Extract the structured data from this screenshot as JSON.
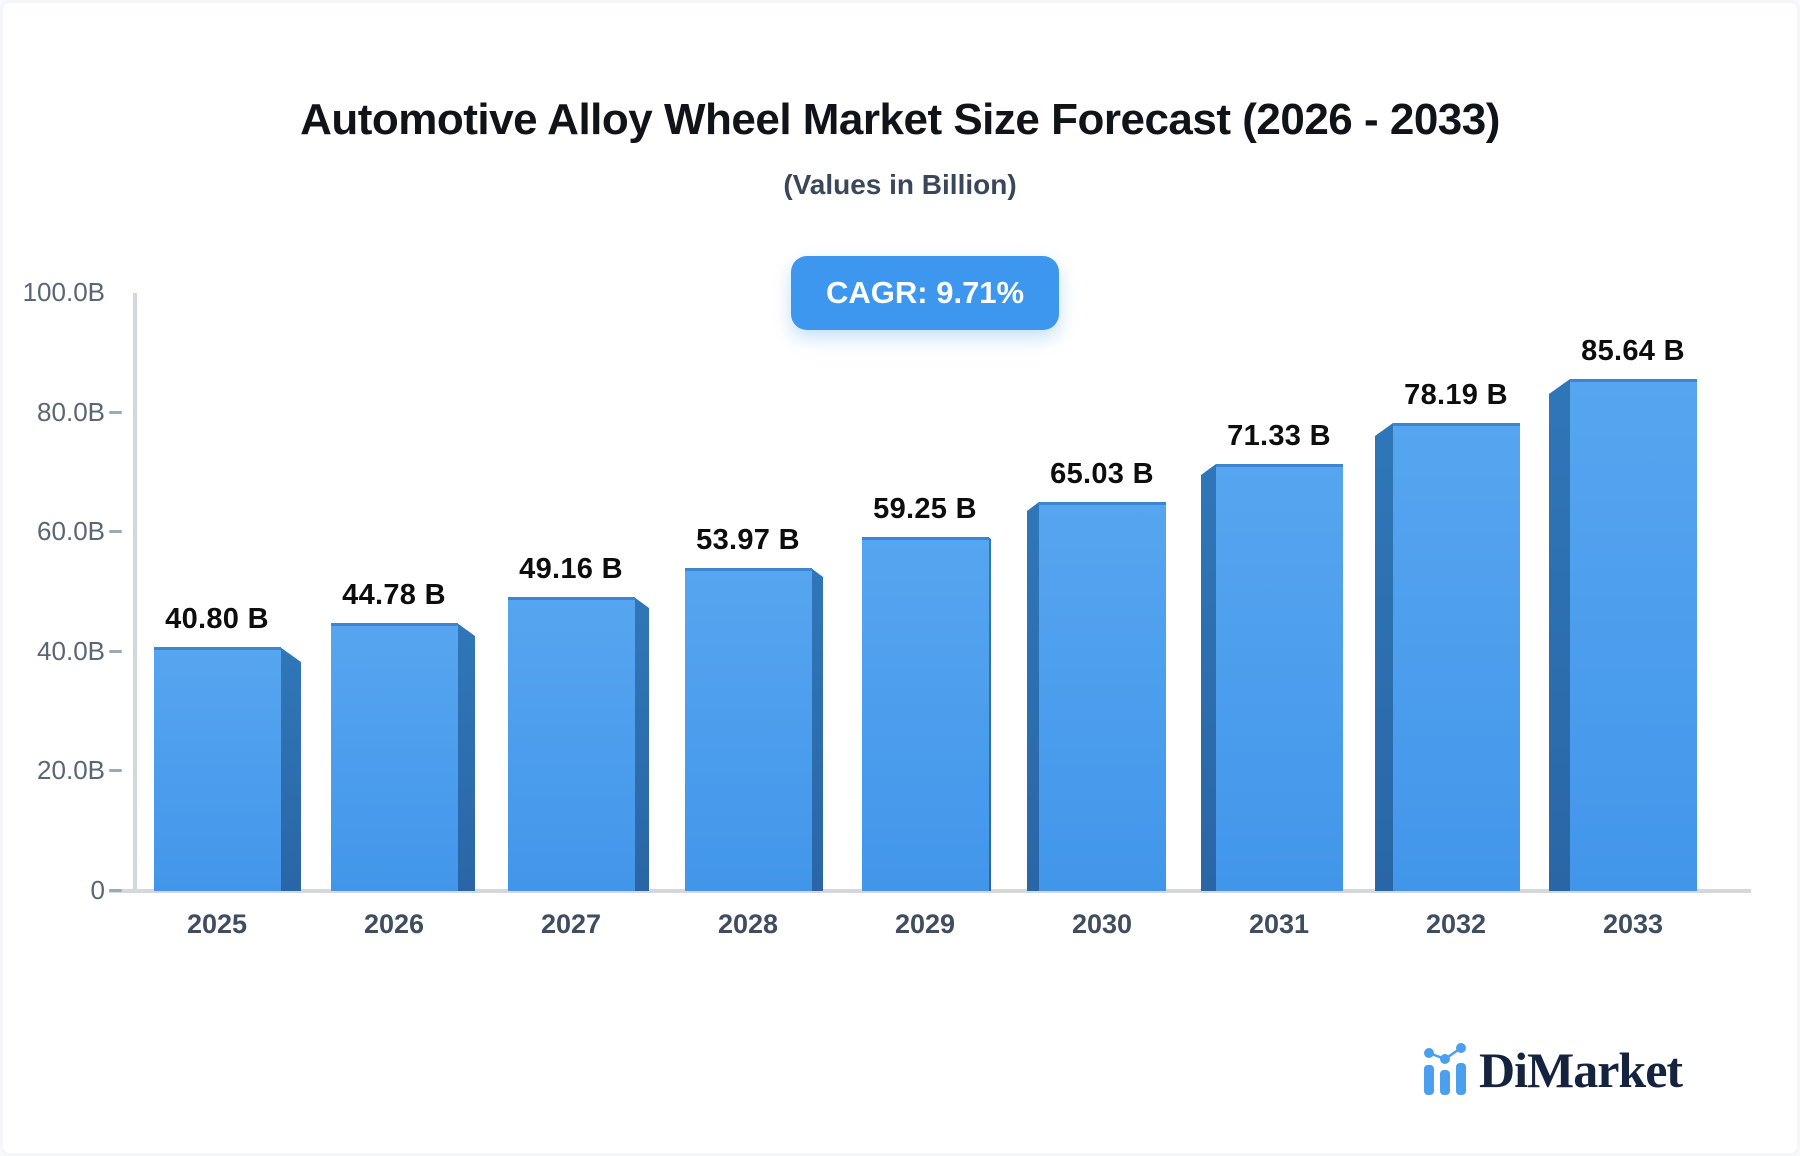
{
  "title": "Automotive Alloy Wheel Market Size Forecast (2026 - 2033)",
  "subtitle": "(Values in Billion)",
  "badge": {
    "label": "CAGR: 9.71%",
    "bg": "#3e97ee",
    "text_color": "#ffffff"
  },
  "chart_data": {
    "type": "bar",
    "title": "Automotive Alloy Wheel Market Size Forecast (2026 - 2033)",
    "subtitle": "(Values in Billion)",
    "categories": [
      "2025",
      "2026",
      "2027",
      "2028",
      "2029",
      "2030",
      "2031",
      "2032",
      "2033"
    ],
    "values": [
      40.8,
      44.78,
      49.16,
      53.97,
      59.25,
      65.03,
      71.33,
      78.19,
      85.64
    ],
    "value_labels": [
      "40.80 B",
      "44.78 B",
      "49.16 B",
      "53.97 B",
      "59.25 B",
      "65.03 B",
      "71.33 B",
      "78.19 B",
      "85.64 B"
    ],
    "series_unit": "Billion",
    "xlabel": "",
    "ylabel": "",
    "ylim": [
      0,
      100
    ],
    "y_ticks": [
      {
        "value": 0,
        "label": "0"
      },
      {
        "value": 20,
        "label": "20.0B"
      },
      {
        "value": 40,
        "label": "40.0B"
      },
      {
        "value": 60,
        "label": "60.0B"
      },
      {
        "value": 80,
        "label": "80.0B"
      },
      {
        "value": 100,
        "label": "100.0B"
      }
    ],
    "grid": false,
    "legend": false,
    "bar_style": "3d-perspective"
  },
  "logo": {
    "text": "DiMarket",
    "icon": "bar-chart-logo-icon",
    "text_color": "#16233f",
    "icon_color": "#4a9fee"
  },
  "colors": {
    "bar_face_top": "#56a5f0",
    "bar_face_bottom": "#4296ea",
    "bar_top_edge": "#3d85cd",
    "bar_side_top": "#2f77b9",
    "bar_side_bottom": "#2a66a6",
    "axis_line": "#d4d8dc",
    "tick_dash": "#9aaab6",
    "y_label_text": "#5a6575",
    "x_label_text": "#3f4d60",
    "value_label_text": "#0d0d0d",
    "badge_bg": "#3e97ee",
    "title_text": "#101418",
    "subtitle_text": "#3a4759"
  }
}
